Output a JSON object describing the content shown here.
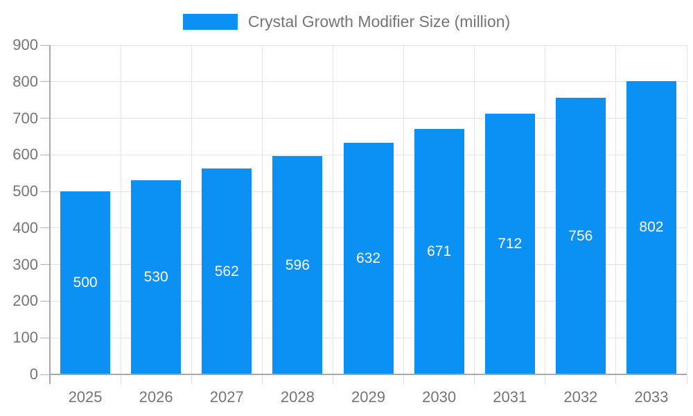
{
  "legend": {
    "items": [
      {
        "label": "Crystal Growth Modifier Size (million)",
        "color": "#0b90f4"
      }
    ],
    "position": "top"
  },
  "chart_data": {
    "type": "bar",
    "title": "Crystal Growth Modifier Size (million)",
    "series_name": "Crystal Growth Modifier Size (million)",
    "categories": [
      "2025",
      "2026",
      "2027",
      "2028",
      "2029",
      "2030",
      "2031",
      "2032",
      "2033"
    ],
    "values": [
      500,
      530,
      562,
      596,
      632,
      671,
      712,
      756,
      802
    ],
    "xlabel": "",
    "ylabel": "",
    "ylim": [
      0,
      900
    ],
    "ytick_step": 100,
    "grid": true,
    "legend_position": "top",
    "value_labels_inside_bars": true
  },
  "colors": {
    "bar": "#0b90f4",
    "grid": "#e4e4e4",
    "axis": "#a8a8a8",
    "y_tick": "#b0b0b0",
    "x_tick": "#dcdcdc",
    "label_text": "#757575",
    "value_text": "#ffffff",
    "background": "#ffffff"
  }
}
